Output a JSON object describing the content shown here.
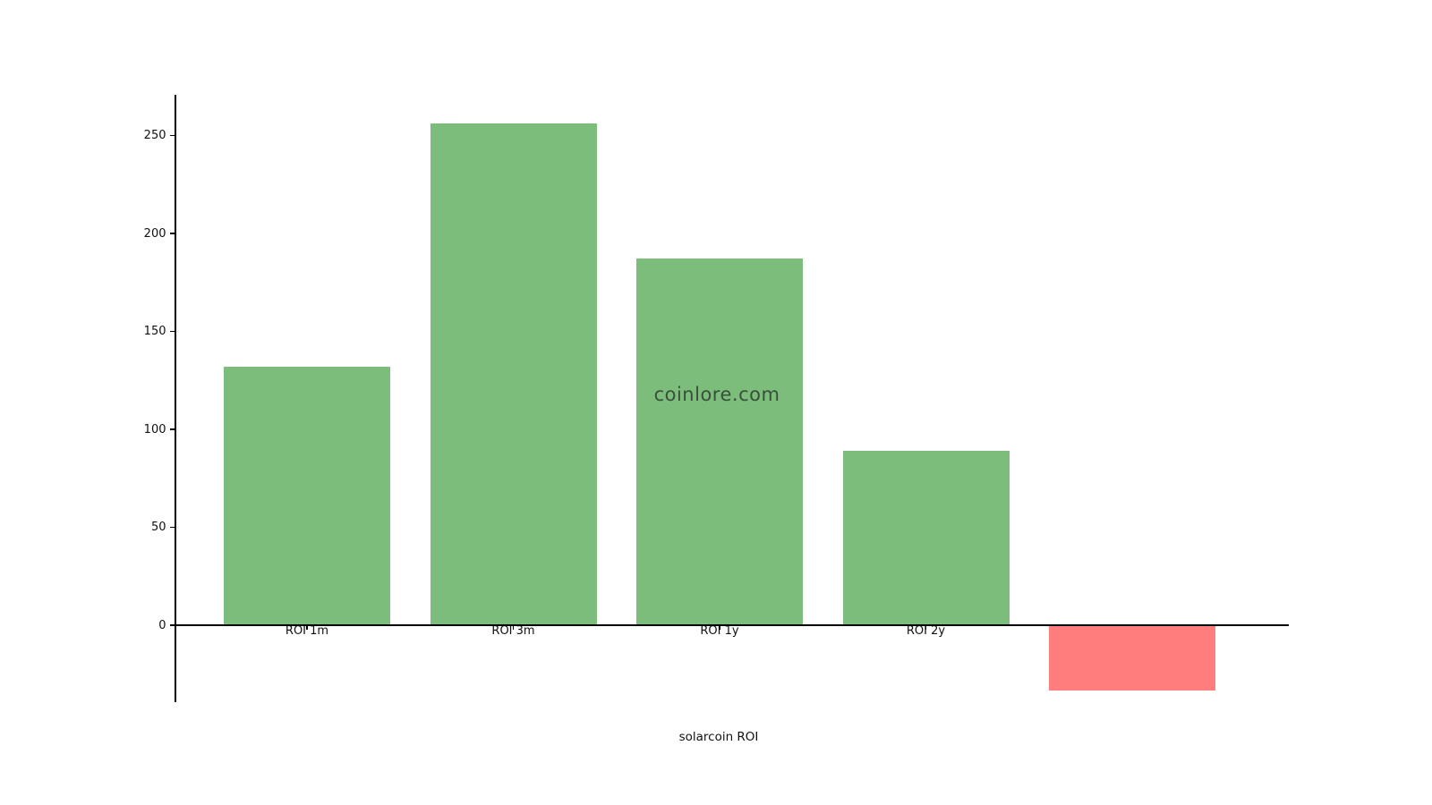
{
  "page": {
    "background_color": "#ffffff"
  },
  "chart_data": {
    "type": "bar",
    "title": "solarcoin ROI",
    "watermark": "coinlore.com",
    "categories": [
      "ROI 1m",
      "ROI 3m",
      "ROI 1y",
      "ROI 2y",
      ""
    ],
    "values": [
      132,
      256,
      187,
      89,
      -33
    ],
    "series": [
      {
        "name": "solarcoin ROI",
        "values": [
          132,
          256,
          187,
          89,
          -33
        ]
      }
    ],
    "positive_color": "#7cbd7c",
    "negative_color": "#ff7d7d",
    "y_ticks": [
      0,
      50,
      100,
      150,
      200,
      250
    ],
    "ylim": [
      -40,
      271
    ],
    "xlabel": "solarcoin ROI",
    "ylabel": "",
    "grid": false,
    "legend_position": "none",
    "axis_color": "#000000",
    "text_color": "#111111"
  }
}
